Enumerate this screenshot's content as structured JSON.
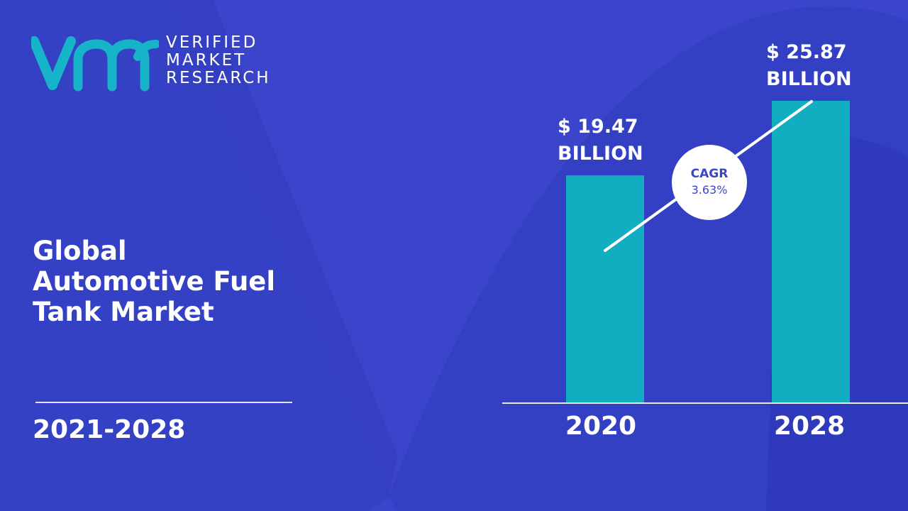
{
  "brand": {
    "line1": "VERIFIED",
    "line2": "MARKET",
    "line3": "RESEARCH",
    "mark_color": "#16b3c9"
  },
  "report": {
    "title_lines": [
      "Global",
      "Automotive Fuel",
      "Tank Market"
    ],
    "period": "2021-2028"
  },
  "colors": {
    "background": "#3b45cc",
    "bar": "#12adc1",
    "text": "#ffffff",
    "cagr_text": "#3b45cc"
  },
  "chart_data": {
    "type": "bar",
    "categories": [
      "2020",
      "2028"
    ],
    "values": [
      19.47,
      25.87
    ],
    "value_labels": [
      [
        "$ 19.47",
        "BILLION"
      ],
      [
        "$ 25.87",
        "BILLION"
      ]
    ],
    "unit": "USD billion",
    "annotation": {
      "title": "CAGR",
      "value": "3.63%"
    },
    "grid": false,
    "legend": false
  }
}
